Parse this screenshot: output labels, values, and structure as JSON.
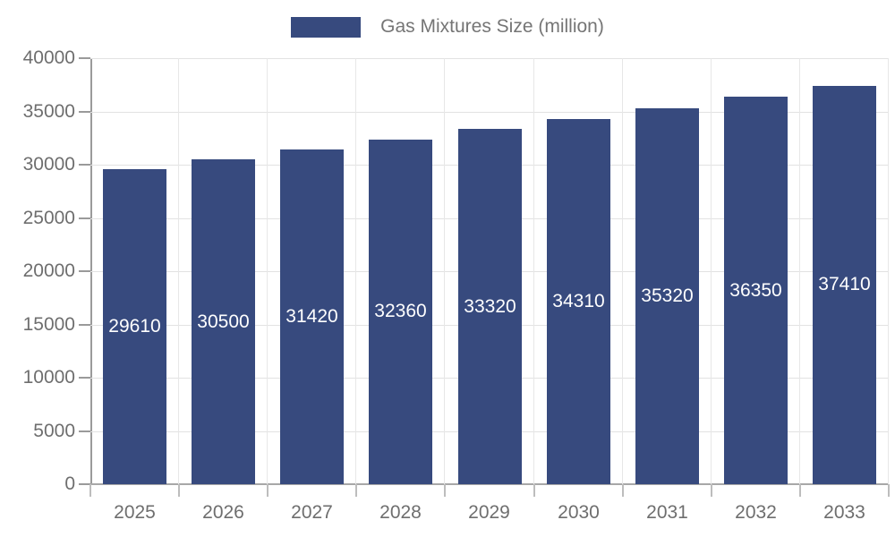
{
  "legend": {
    "label": "Gas Mixtures Size (million)",
    "swatch_color": "#374a7e"
  },
  "chart_data": {
    "type": "bar",
    "title": "Gas Mixtures Size (million)",
    "categories": [
      "2025",
      "2026",
      "2027",
      "2028",
      "2029",
      "2030",
      "2031",
      "2032",
      "2033"
    ],
    "values": [
      29610,
      30500,
      31420,
      32360,
      33320,
      34310,
      35320,
      36350,
      37410
    ],
    "series_name": "Gas Mixtures Size (million)",
    "xlabel": "",
    "ylabel": "",
    "ylim": [
      0,
      40000
    ],
    "y_ticks": [
      0,
      5000,
      10000,
      15000,
      20000,
      25000,
      30000,
      35000,
      40000
    ],
    "grid": true,
    "legend_position": "top",
    "bar_color": "#374a7e",
    "bar_label_color": "#ffffff",
    "axis_text_color": "#6e6e6e"
  }
}
